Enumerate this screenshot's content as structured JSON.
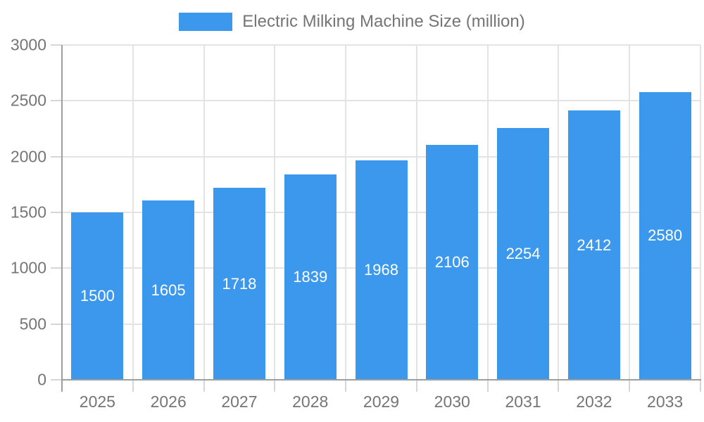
{
  "chart_data": {
    "type": "bar",
    "title": "Electric Milking Machine Size (million)",
    "categories": [
      "2025",
      "2026",
      "2027",
      "2028",
      "2029",
      "2030",
      "2031",
      "2032",
      "2033"
    ],
    "series": [
      {
        "name": "Electric Milking Machine Size (million)",
        "values": [
          1500,
          1605,
          1718,
          1839,
          1968,
          2106,
          2254,
          2412,
          2580
        ]
      }
    ],
    "values": [
      1500,
      1605,
      1718,
      1839,
      1968,
      2106,
      2254,
      2412,
      2580
    ],
    "bar_value_labels": [
      "1500",
      "1605",
      "1718",
      "1839",
      "1968",
      "2106",
      "2254",
      "2412",
      "2580"
    ],
    "xlabel": "",
    "ylabel": "",
    "ylim": [
      0,
      3000
    ],
    "yticks": [
      0,
      500,
      1000,
      1500,
      2000,
      2500,
      3000
    ],
    "grid": true,
    "legend_position": "top-center",
    "bar_labels_position": "center",
    "colors": {
      "bar": "#3b98ec",
      "axis_text": "#757575",
      "bar_label_text": "#ffffff",
      "gridline": "#e3e3e3",
      "axis_line": "#9e9e9e",
      "tick": "#d6d6d6",
      "background": "#ffffff"
    }
  }
}
